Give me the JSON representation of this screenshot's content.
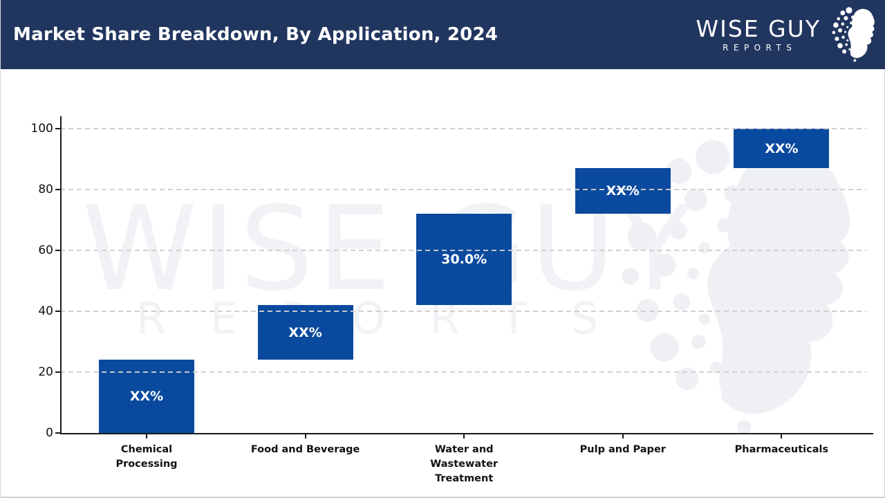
{
  "header": {
    "title": "Market Share Breakdown, By Application, 2024",
    "bg_color": "#21365f",
    "logo": {
      "name": "WISE GUY",
      "subtitle": "REPORTS"
    }
  },
  "watermark": {
    "name": "WISE GUY",
    "subtitle": "REPORTS"
  },
  "chart_data": {
    "type": "bar",
    "subtype": "floating-waterfall",
    "title": "Market Share Breakdown, By Application, 2024",
    "categories": [
      "Chemical\nProcessing",
      "Food and Beverage",
      "Water and\nWastewater\nTreatment",
      "Pulp and Paper",
      "Pharmaceuticals"
    ],
    "segments": [
      {
        "category": "Chemical Processing",
        "start": 0,
        "end": 24,
        "label": "XX%"
      },
      {
        "category": "Food and Beverage",
        "start": 24,
        "end": 42,
        "label": "XX%"
      },
      {
        "category": "Water and Wastewater Treatment",
        "start": 42,
        "end": 72,
        "label": "30.0%"
      },
      {
        "category": "Pulp and Paper",
        "start": 72,
        "end": 87,
        "label": "XX%"
      },
      {
        "category": "Pharmaceuticals",
        "start": 87,
        "end": 100,
        "label": "XX%"
      }
    ],
    "y_ticks": [
      0,
      20,
      40,
      60,
      80,
      100
    ],
    "ylim": [
      0,
      104
    ],
    "grid": true,
    "gridline_style": "dashed",
    "legend": "none",
    "bar_color": "#0a4a9e",
    "value_label_color": "#ffffff",
    "gridline_color": "#cecece"
  }
}
